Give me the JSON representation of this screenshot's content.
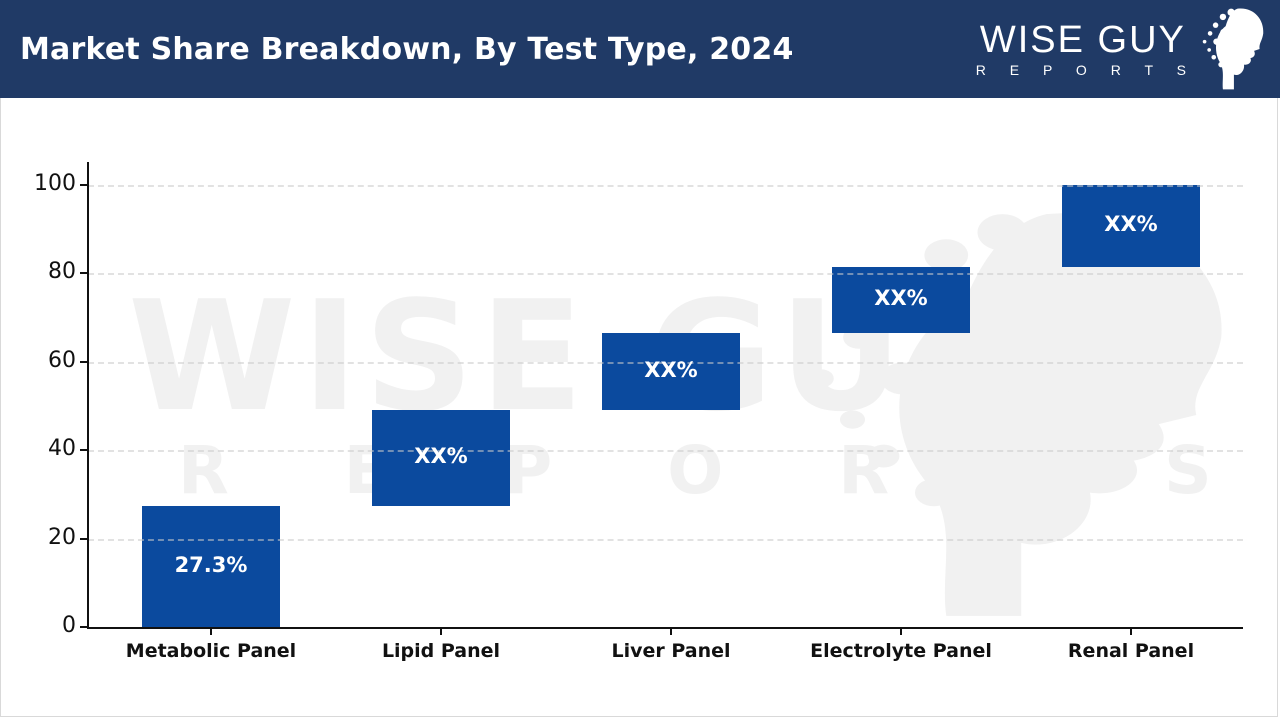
{
  "header": {
    "title": "Market Share Breakdown, By Test Type, 2024",
    "logo": {
      "line1": "WISE GUY",
      "line2": "REPORTS"
    }
  },
  "watermark": {
    "line1": "WISE GUY",
    "line2": "REPORTS"
  },
  "colors": {
    "header_bg": "#203A66",
    "bar": "#0B4A9E",
    "grid": "#d9d9d9",
    "axis": "#111111",
    "bar_label": "#ffffff",
    "watermark": "#f1f1f1"
  },
  "chart_data": {
    "type": "bar",
    "subtype": "waterfall",
    "title": "Market Share Breakdown, By Test Type, 2024",
    "categories": [
      "Metabolic Panel",
      "Lipid Panel",
      "Liver Panel",
      "Electrolyte Panel",
      "Renal Panel"
    ],
    "segments": [
      {
        "category": "Metabolic Panel",
        "start": 0,
        "end": 27.3,
        "label": "27.3%"
      },
      {
        "category": "Lipid Panel",
        "start": 27.3,
        "end": 49,
        "label": "XX%"
      },
      {
        "category": "Liver Panel",
        "start": 49,
        "end": 66.5,
        "label": "XX%"
      },
      {
        "category": "Electrolyte Panel",
        "start": 66.5,
        "end": 81.5,
        "label": "XX%"
      },
      {
        "category": "Renal Panel",
        "start": 81.5,
        "end": 100,
        "label": "XX%"
      }
    ],
    "yticks": [
      0,
      20,
      40,
      60,
      80,
      100
    ],
    "ylim": [
      0,
      105
    ],
    "xlabel": "",
    "ylabel": "",
    "grid": "horizontal-dashed",
    "legend": "none",
    "bar_color": "#0B4A9E"
  }
}
